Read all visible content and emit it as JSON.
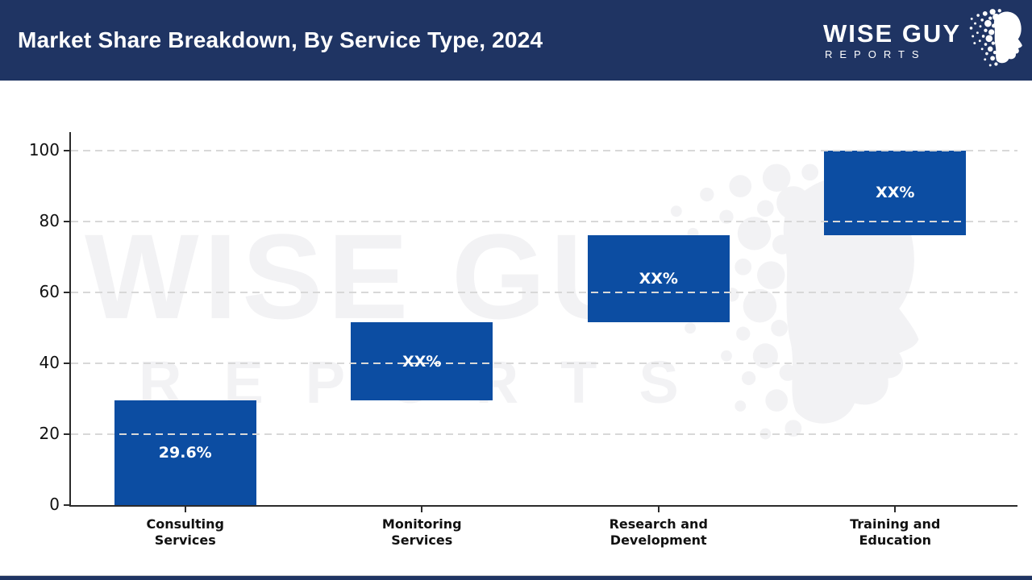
{
  "header": {
    "title": "Market Share Breakdown, By Service Type, 2024",
    "logo": {
      "primary": "WISE GUY",
      "secondary": "REPORTS"
    }
  },
  "watermark": {
    "primary": "WISE GUY",
    "secondary": "REPORTS"
  },
  "chart_data": {
    "type": "bar",
    "subtype": "waterfall",
    "title": "Market Share Breakdown, By Service Type, 2024",
    "categories": [
      {
        "name": "Consulting Services",
        "lines": [
          "Consulting",
          "Services"
        ]
      },
      {
        "name": "Monitoring Services",
        "lines": [
          "Monitoring",
          "Services"
        ]
      },
      {
        "name": "Research and Development",
        "lines": [
          "Research and",
          "Development"
        ]
      },
      {
        "name": "Training and Education",
        "lines": [
          "Training and",
          "Education"
        ]
      }
    ],
    "segments": [
      {
        "category": "Consulting Services",
        "start": 0,
        "end": 29.6,
        "label": "29.6%"
      },
      {
        "category": "Monitoring Services",
        "start": 29.6,
        "end": 51.5,
        "label": "XX%"
      },
      {
        "category": "Research and Development",
        "start": 51.5,
        "end": 76.2,
        "label": "XX%"
      },
      {
        "category": "Training and Education",
        "start": 76.2,
        "end": 100,
        "label": "XX%"
      }
    ],
    "ylim": [
      0,
      100
    ],
    "yticks": [
      0,
      20,
      40,
      60,
      80,
      100
    ],
    "xlabel": "",
    "ylabel": "",
    "grid": "horizontal-dashed",
    "legend": false,
    "bar_color": "#0c4da2",
    "bar_label_color": "#ffffff"
  },
  "colors": {
    "header_bg": "#1f3463",
    "footer_bg": "#1f3463",
    "bar": "#0c4da2",
    "axis": "#2b2b2b",
    "gridline": "#d8d8d8",
    "watermark": "#f2f2f4",
    "tick_text": "#111111"
  },
  "icons": {
    "brand_head": "wiseguy-head-icon"
  }
}
